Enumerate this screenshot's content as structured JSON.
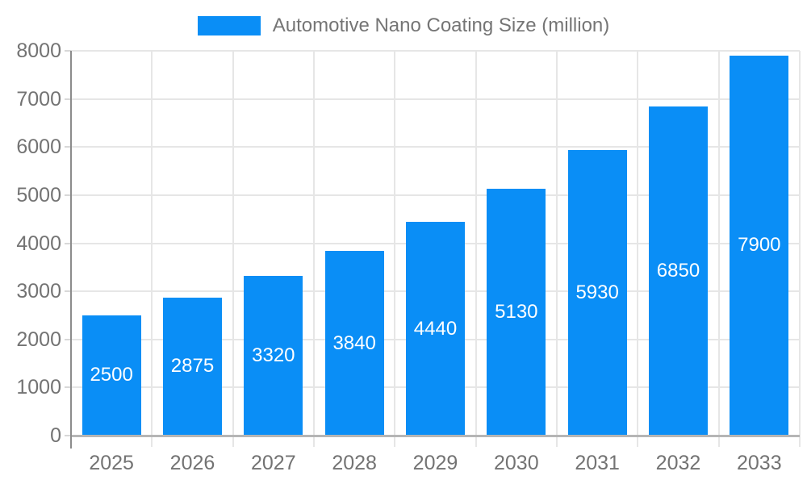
{
  "legend": {
    "label": "Automotive Nano Coating Size (million)"
  },
  "chart_data": {
    "type": "bar",
    "title": "",
    "xlabel": "",
    "ylabel": "",
    "legend_entries": [
      "Automotive Nano Coating Size (million)"
    ],
    "legend_position": "top-center",
    "categories": [
      "2025",
      "2026",
      "2027",
      "2028",
      "2029",
      "2030",
      "2031",
      "2032",
      "2033"
    ],
    "series": [
      {
        "name": "Automotive Nano Coating Size (million)",
        "values": [
          2500,
          2875,
          3320,
          3840,
          4440,
          5130,
          5930,
          6850,
          7900
        ]
      }
    ],
    "value_labels_shown": true,
    "value_label_position": "inside-center",
    "ylim": [
      0,
      8000
    ],
    "y_ticks": [
      0,
      1000,
      2000,
      3000,
      4000,
      5000,
      6000,
      7000,
      8000
    ],
    "grid": true,
    "colors": {
      "bar": "#0a8ef6",
      "gridline": "#e6e6e6",
      "x_axis_line": "#b5b5b5",
      "y_axis_line": "#8c8c8c",
      "y_tick_stub": "#d8d8d8",
      "tick_text": "#737373",
      "legend_text": "#757575",
      "value_label_text": "#ffffff",
      "background": "#ffffff"
    }
  }
}
